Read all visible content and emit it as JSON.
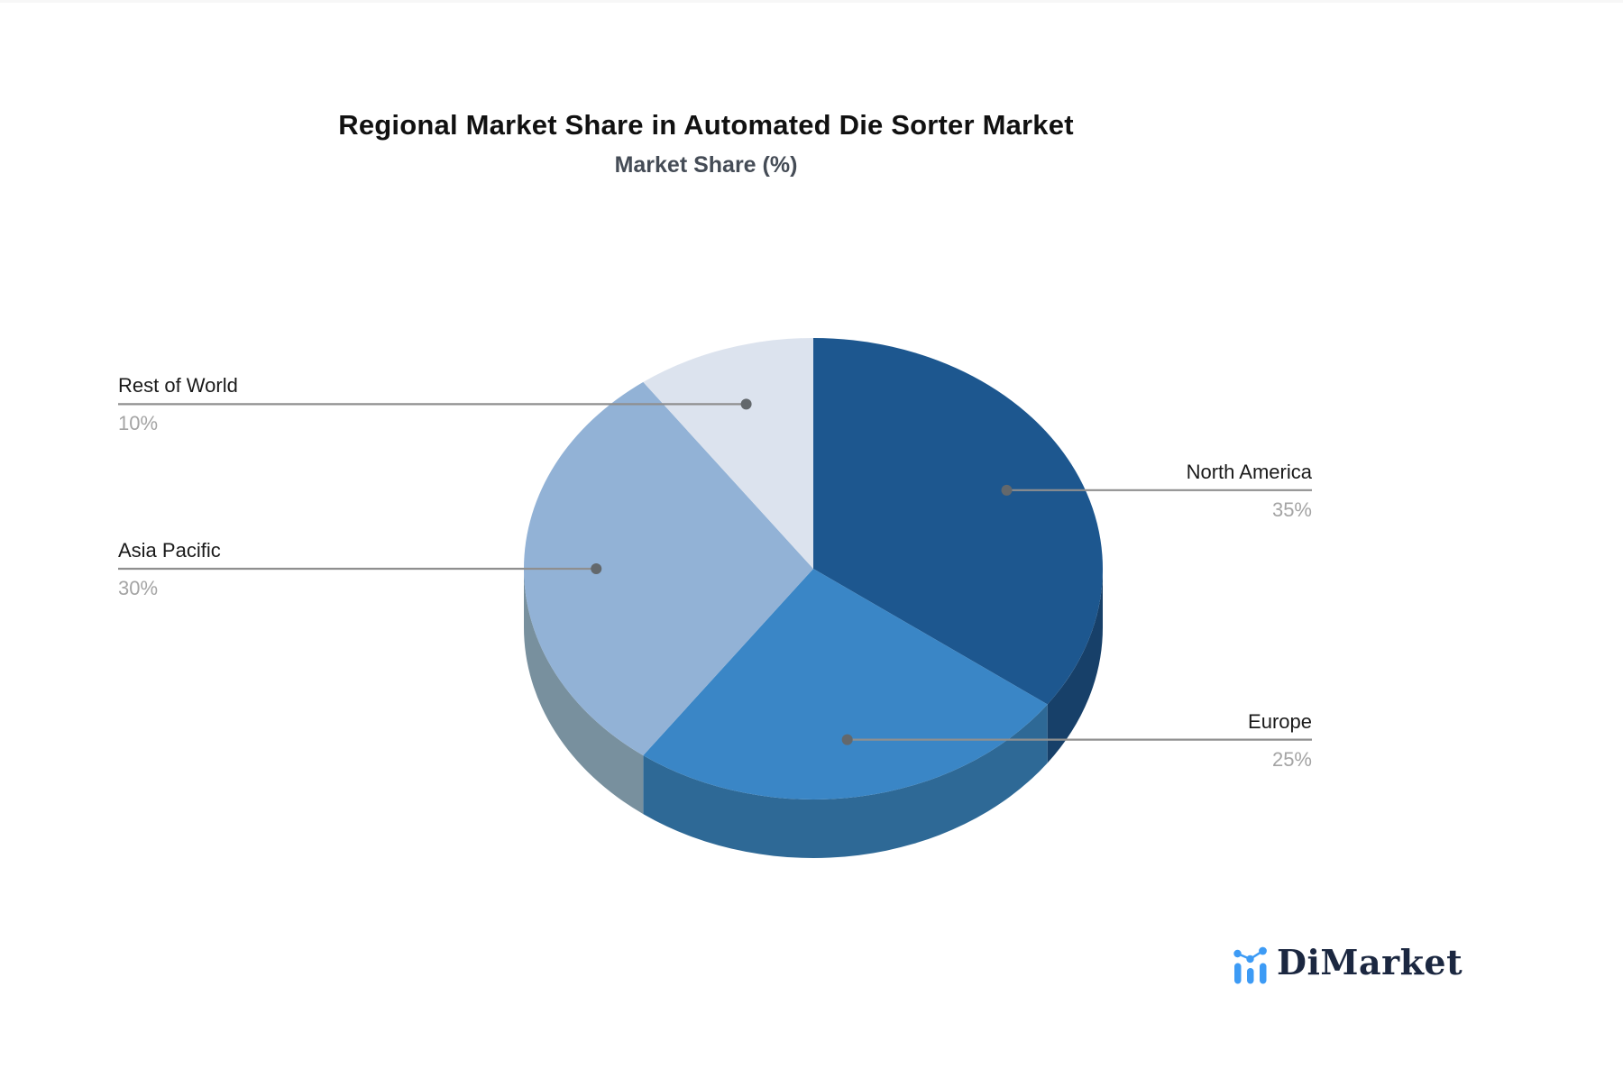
{
  "page": {
    "background": "#ffffff",
    "top_strip_color": "#f7f7f7"
  },
  "header": {
    "title": "Regional Market Share in Automated Die Sorter Market",
    "subtitle": "Market Share (%)"
  },
  "chart_data": {
    "type": "pie",
    "style": "3d-depth",
    "title": "Regional Market Share in Automated Die Sorter Market",
    "subtitle": "Market Share (%)",
    "unit": "%",
    "start_angle": "12-oclock",
    "direction": "clockwise",
    "legend": "none",
    "slices": [
      {
        "label": "North America",
        "value": 35,
        "value_label": "35%",
        "color": "#1d578f",
        "depth_color": "#174069",
        "label_side": "right"
      },
      {
        "label": "Europe",
        "value": 25,
        "value_label": "25%",
        "color": "#3a86c6",
        "depth_color": "#2e6996",
        "label_side": "right"
      },
      {
        "label": "Asia Pacific",
        "value": 30,
        "value_label": "30%",
        "color": "#92b2d6",
        "depth_color": "#78909e",
        "label_side": "left"
      },
      {
        "label": "Rest of World",
        "value": 10,
        "value_label": "10%",
        "color": "#dce3ee",
        "depth_color": "#b0c0d4",
        "label_side": "left"
      }
    ],
    "label_text_color": "#1a1a1a",
    "value_text_color": "#a4a4a4",
    "leader_line_color": "#8f8f8f",
    "leader_dot_color": "#63686c",
    "title_color": "#111111",
    "subtitle_color": "#454c56"
  },
  "brand": {
    "name": "DiMarket",
    "icon": "bar-line-chart-icon",
    "icon_color": "#3d9bf5",
    "text_color": "#1b2740"
  }
}
